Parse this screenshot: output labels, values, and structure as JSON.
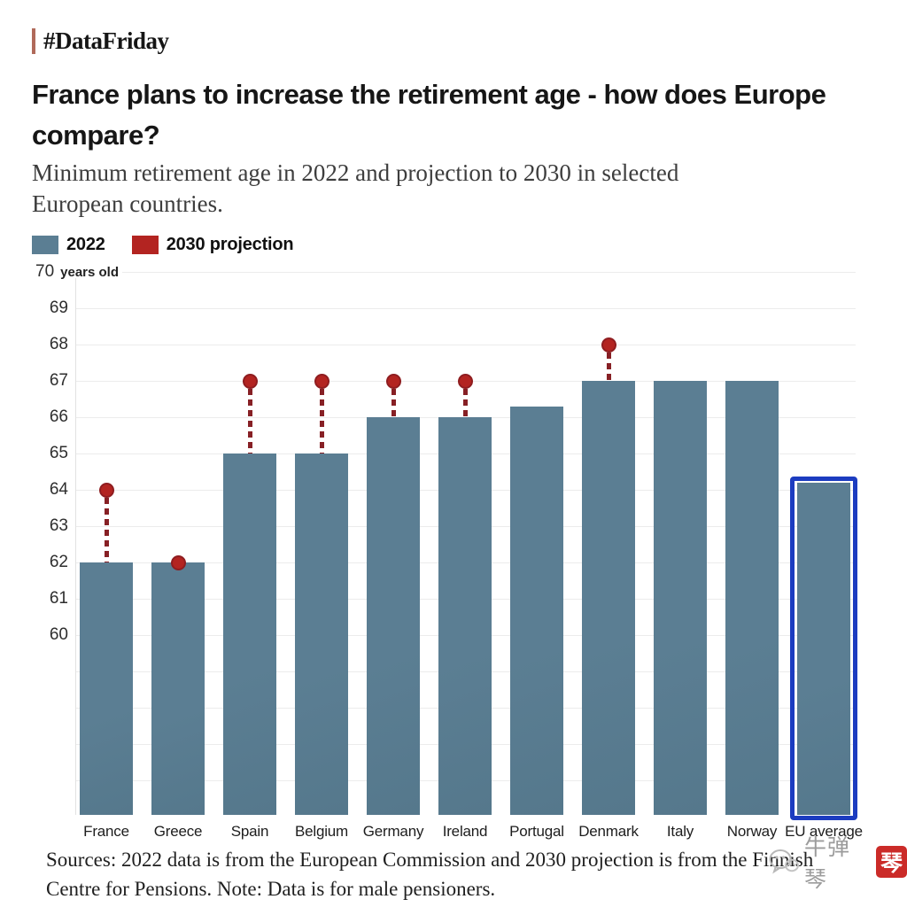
{
  "header": {
    "kicker": "#DataFriday"
  },
  "title": "France plans to increase the retirement age - how does Europe compare?",
  "subtitle": "Minimum retirement age in 2022 and projection to 2030 in selected European countries.",
  "legend": [
    {
      "label": "2022",
      "color": "#5b7e93"
    },
    {
      "label": "2030 projection",
      "color": "#b32421"
    }
  ],
  "axis_top_label": {
    "value": "70",
    "unit": "years old"
  },
  "chart_data": {
    "type": "bar",
    "title": "France plans to increase the retirement age - how does Europe compare?",
    "xlabel": "",
    "ylabel": "years old",
    "categories": [
      "France",
      "Greece",
      "Spain",
      "Belgium",
      "Germany",
      "Ireland",
      "Portugal",
      "Denmark",
      "Italy",
      "Norway",
      "EU average"
    ],
    "series": [
      {
        "name": "2022",
        "values": [
          62,
          62,
          65,
          65,
          66,
          66,
          66.3,
          67,
          67,
          67,
          64.2
        ]
      },
      {
        "name": "2030 projection",
        "values": [
          64,
          62,
          67,
          67,
          67,
          67,
          null,
          68,
          null,
          null,
          null
        ]
      }
    ],
    "ylim": [
      56,
      70
    ],
    "yticks": [
      60,
      61,
      62,
      63,
      64,
      65,
      66,
      67,
      68,
      69,
      70
    ],
    "grid": true,
    "legend_position": "top-left",
    "highlight_category": "EU average",
    "colors": {
      "bar": "#5b7e93",
      "projection_dot": "#b32421",
      "projection_line": "#872025",
      "highlight_outline": "#1c3cc0",
      "gridline": "#ececec"
    }
  },
  "footer": {
    "line1": "Sources: 2022 data is from the European Commission and 2030 projection is from the Finnish",
    "line2": "Centre for Pensions. Note: Data is for male pensioners."
  },
  "watermark": {
    "text": "牛弹琴",
    "badge": "琴"
  }
}
